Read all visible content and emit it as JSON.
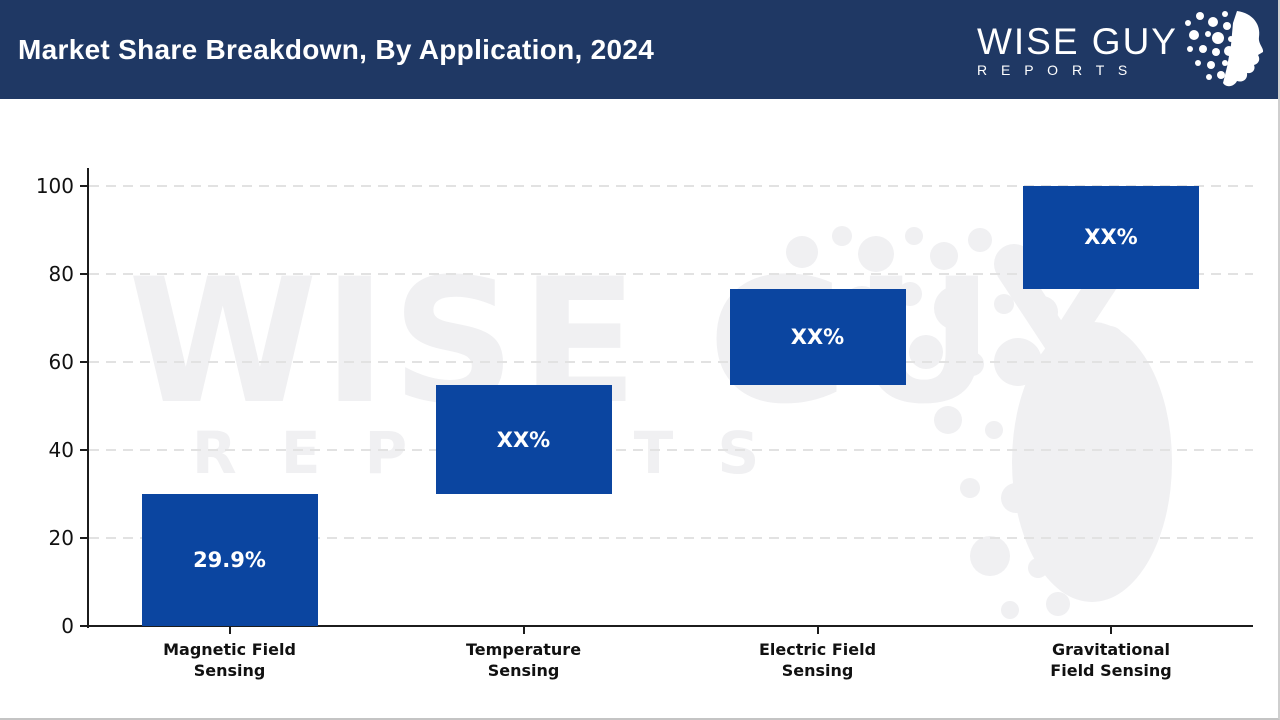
{
  "header": {
    "title": "Market Share Breakdown, By Application, 2024",
    "logo": {
      "name": "WISE GUY",
      "sub": "R E P O R T S"
    }
  },
  "watermark": {
    "line1": "WISE GUY",
    "line2": "R E P O R T S"
  },
  "colors": {
    "header_bg": "#1f3864",
    "bar_fill": "#0b45a0",
    "bar_label": "#ffffff",
    "watermark": "#f0f0f2",
    "grid": "#e2e2e2",
    "axis": "#1c1c1c"
  },
  "chart_data": {
    "type": "bar",
    "subtype": "waterfall",
    "title": "Market Share Breakdown, By Application, 2024",
    "xlabel": "",
    "ylabel": "",
    "ylim": [
      0,
      104
    ],
    "y_ticks": [
      0,
      20,
      40,
      60,
      80,
      100
    ],
    "grid": "horizontal-dashed",
    "legend": "none",
    "categories": [
      [
        "Magnetic Field",
        "Sensing"
      ],
      [
        "Temperature",
        "Sensing"
      ],
      [
        "Electric Field",
        "Sensing"
      ],
      [
        "Gravitational",
        "Field Sensing"
      ]
    ],
    "bars": [
      {
        "category": "Magnetic Field Sensing",
        "start": 0,
        "end": 29.9,
        "label": "29.9%"
      },
      {
        "category": "Temperature Sensing",
        "start": 29.9,
        "end": 54.8,
        "label": "XX%"
      },
      {
        "category": "Electric Field Sensing",
        "start": 54.8,
        "end": 76.6,
        "label": "XX%"
      },
      {
        "category": "Gravitational Field Sensing",
        "start": 76.6,
        "end": 100,
        "label": "XX%"
      }
    ]
  }
}
